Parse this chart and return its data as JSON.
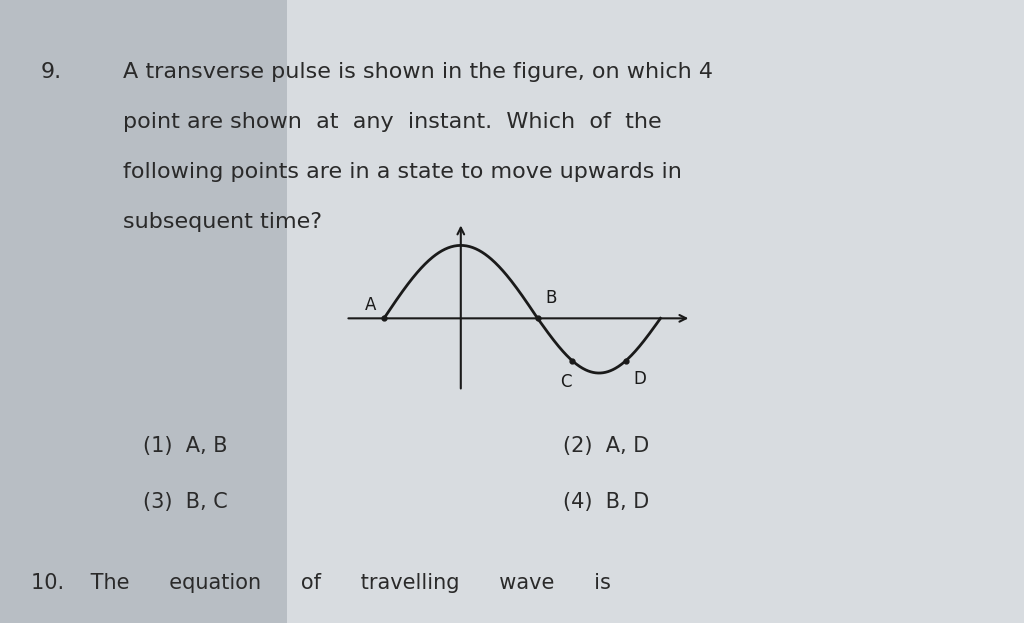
{
  "bg_left": "#b8bec4",
  "bg_right": "#d8dce0",
  "bg_full": "#c8cdd2",
  "text_color": "#2a2a2a",
  "wave_color": "#1a1a1a",
  "font_size_q": 16,
  "font_size_opt": 15,
  "q_num": "9.",
  "line1": "A transverse pulse is shown in the figure, on which 4",
  "line2": "point are shown  at  any  instant.  Which  of  the",
  "line3": "following points are in a state to move upwards in",
  "line4": "subsequent time?",
  "opt1": "(1)  A, B",
  "opt2": "(2)  A, D",
  "opt3": "(3)  B, C",
  "opt4": "(4)  B, D",
  "next_q": "10.    The      equation      of      travelling      wave      is"
}
